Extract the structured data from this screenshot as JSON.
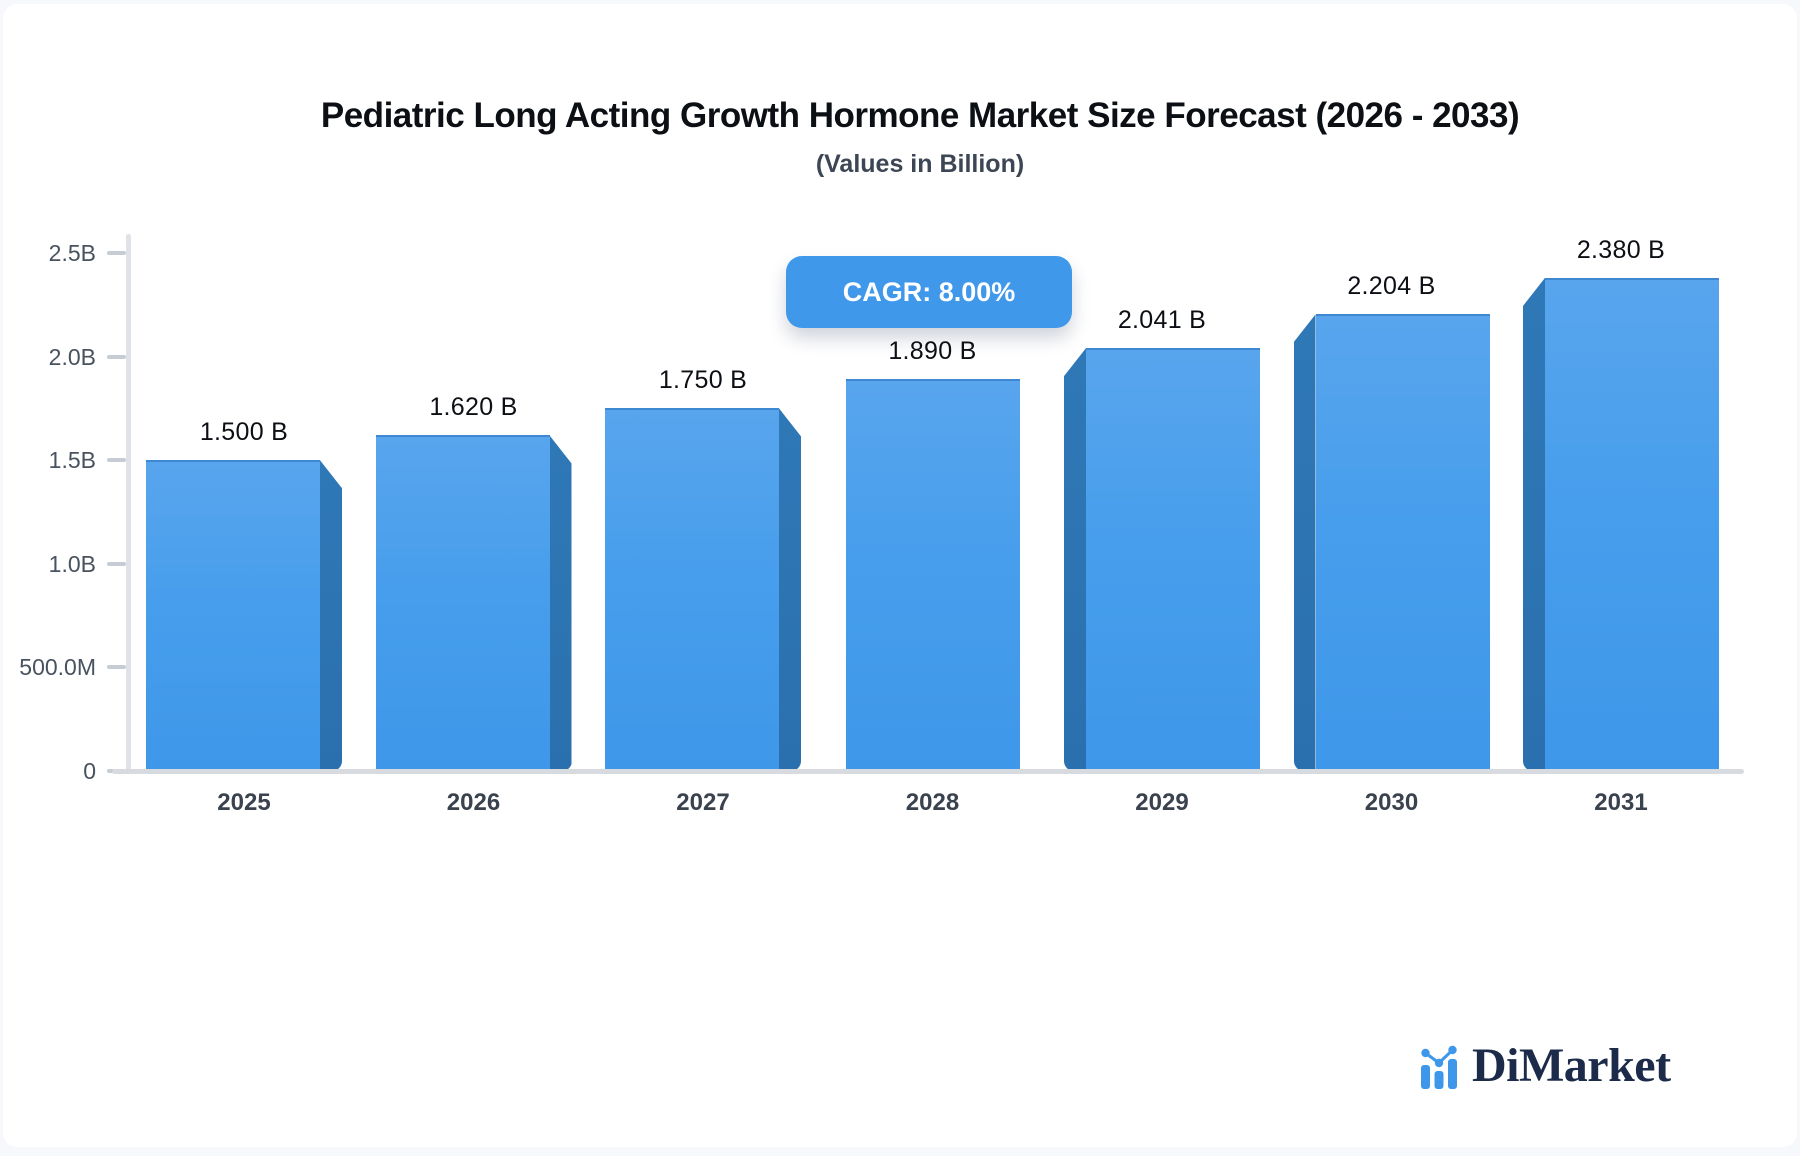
{
  "page": {
    "background": "#f7f8fb",
    "card_background": "#ffffff"
  },
  "header": {
    "title": "Pediatric Long Acting Growth Hormone Market Size Forecast (2026 - 2033)",
    "subtitle": "(Values in Billion)"
  },
  "cagr_badge": {
    "label": "CAGR: 8.00%",
    "background": "#3f98ea",
    "text_color": "#ffffff"
  },
  "brand": {
    "name": "DiMarket",
    "icon": "bar-chart-logo-icon",
    "name_color": "#1c2b4a",
    "icon_color": "#3f97ea"
  },
  "chart_data": {
    "type": "bar",
    "title": "Pediatric Long Acting Growth Hormone Market Size Forecast (2026 - 2033)",
    "subtitle": "(Values in Billion)",
    "cagr": "8.00%",
    "categories": [
      "2025",
      "2026",
      "2027",
      "2028",
      "2029",
      "2030",
      "2031"
    ],
    "values": [
      1.5,
      1.62,
      1.75,
      1.89,
      2.041,
      2.204,
      2.38
    ],
    "value_labels": [
      "1.500 B",
      "1.620 B",
      "1.750 B",
      "1.890 B",
      "2.041 B",
      "2.204 B",
      "2.380 B"
    ],
    "ylim": [
      0,
      2.5
    ],
    "y_ticks": [
      {
        "value": 2.5,
        "label": "2.5B"
      },
      {
        "value": 2.0,
        "label": "2.0B"
      },
      {
        "value": 1.5,
        "label": "1.5B"
      },
      {
        "value": 1.0,
        "label": "1.0B"
      },
      {
        "value": 0.5,
        "label": "500.0M"
      },
      {
        "value": 0,
        "label": "0"
      }
    ],
    "grid": false,
    "legend_position": "none",
    "bar_colors": {
      "face_top": "#58a5ed",
      "face_bottom": "#3f97ea",
      "side": "#2d74b2"
    }
  }
}
